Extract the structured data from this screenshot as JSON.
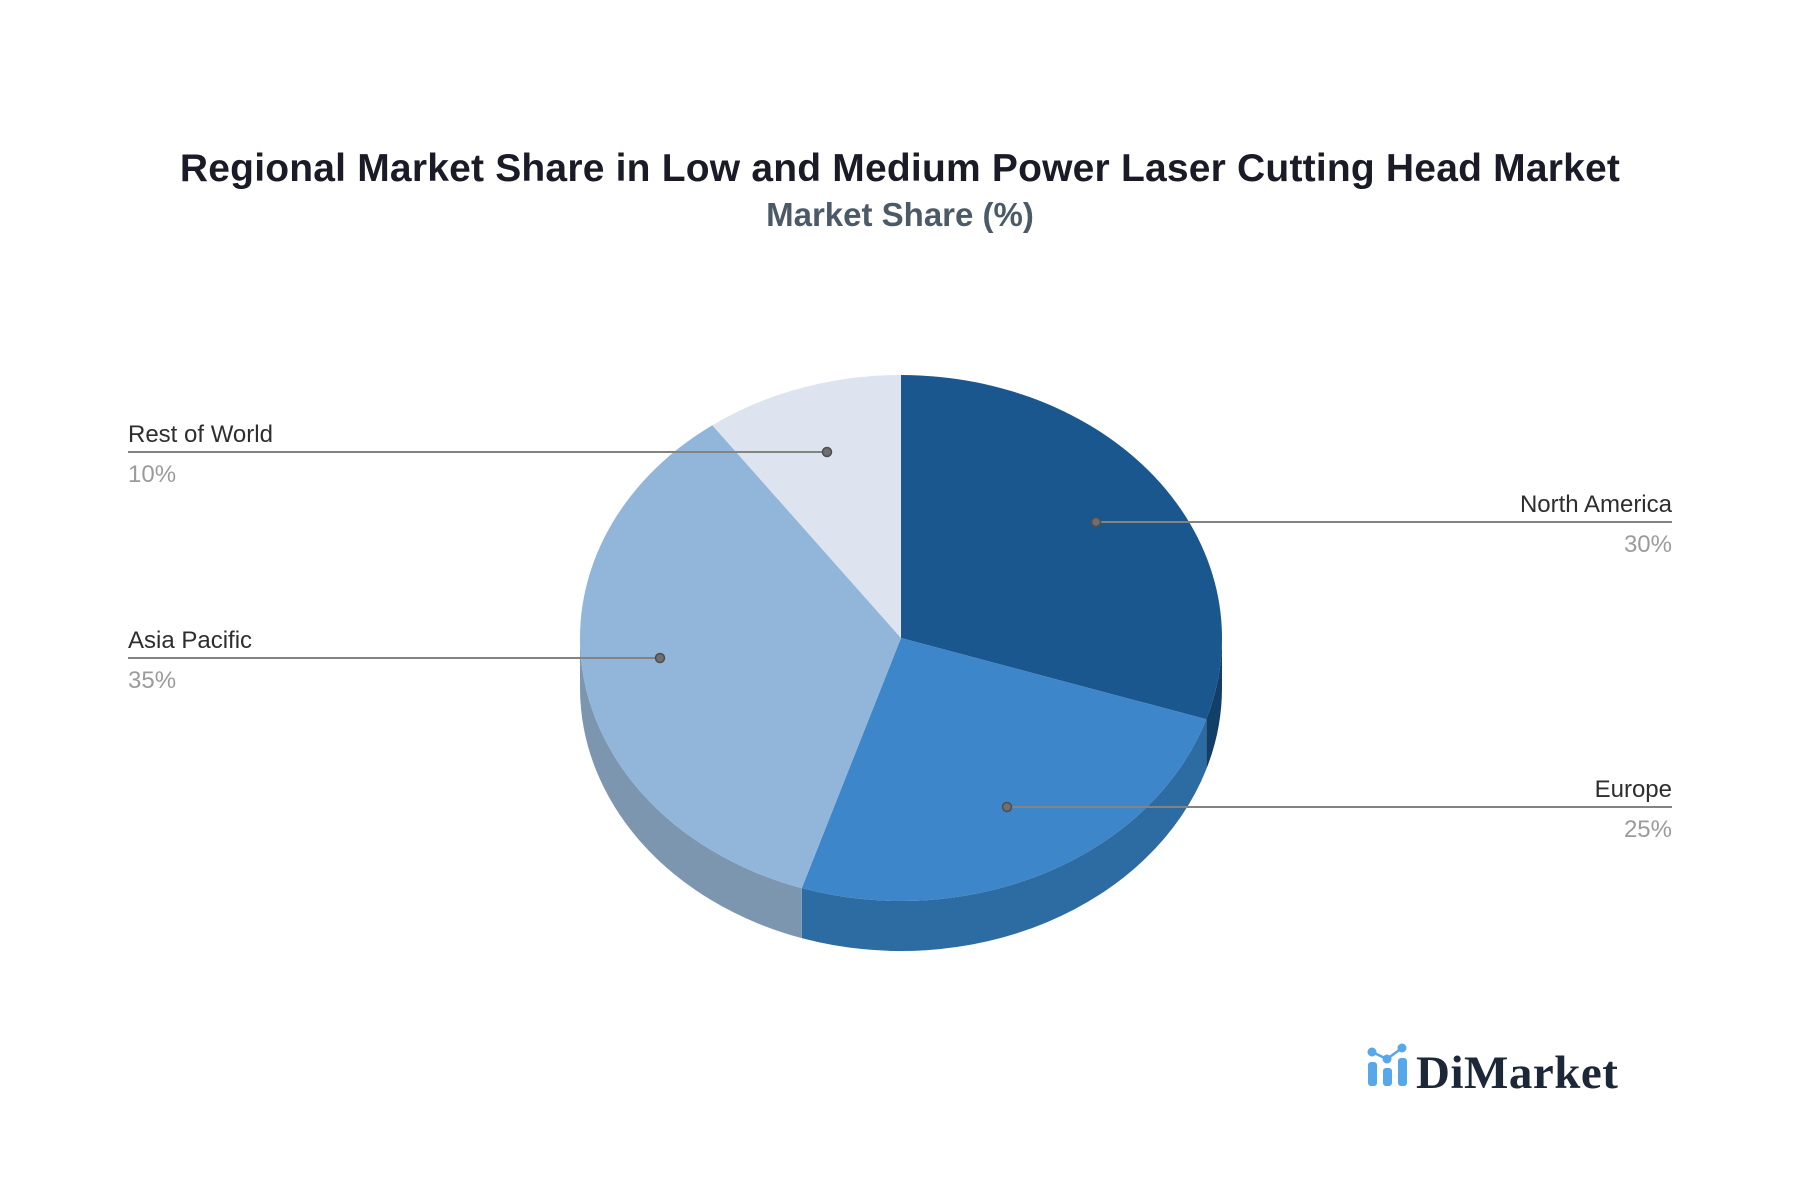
{
  "chart_data": {
    "type": "pie",
    "title": "Regional Market Share in Low and Medium Power Laser Cutting Head Market",
    "subtitle": "Market Share (%)",
    "unit": "%",
    "style": "3d-pie",
    "start_angle_deg": 0,
    "direction": "clockwise",
    "legend_position": "callout-labels",
    "slices": [
      {
        "label": "North America",
        "value": 30,
        "pct_label": "30%",
        "color": "#1A578E",
        "side_color": "#123F68",
        "callout_side": "right"
      },
      {
        "label": "Europe",
        "value": 25,
        "pct_label": "25%",
        "color": "#3C86C9",
        "side_color": "#2D6BA3",
        "callout_side": "right"
      },
      {
        "label": "Asia Pacific",
        "value": 35,
        "pct_label": "35%",
        "color": "#92B5DA",
        "side_color": "#7D96B0",
        "callout_side": "left"
      },
      {
        "label": "Rest of World",
        "value": 10,
        "pct_label": "10%",
        "color": "#DDE4EF",
        "side_color": "#C3CBD8",
        "callout_side": "left"
      }
    ]
  },
  "branding": {
    "name": "DiMarket",
    "icon": "bar-line-chart-icon",
    "icon_color": "#57A8EA",
    "text_color": "#1C2738"
  },
  "colors": {
    "background": "#FFFFFF",
    "title": "#1B1B28",
    "subtitle": "#4C5A68",
    "callout_label": "#2E2E2E",
    "callout_percent": "#9B9B9B",
    "leader_line": "#838383",
    "leader_dot": "#6F6F6F"
  }
}
